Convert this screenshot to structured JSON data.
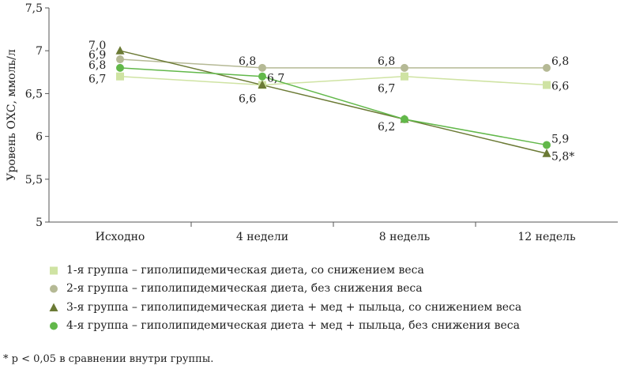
{
  "chart_data": {
    "type": "line",
    "categories": [
      "Исходно",
      "4 недели",
      "8 недель",
      "12 недель"
    ],
    "ylabel": "Уровень ОХС, ммоль/л",
    "ylim": [
      5,
      7.5
    ],
    "yticks": [
      "5",
      "5,5",
      "6",
      "6,5",
      "7",
      "7,5"
    ],
    "grid": false,
    "legend_position": "bottom",
    "series": [
      {
        "name": "1-я группа – гиполипидемическая диета, со снижением веса",
        "marker": "square",
        "color": "#cfe3a3",
        "values": [
          6.7,
          6.6,
          6.7,
          6.6
        ],
        "labels": [
          "6,7",
          "",
          "6,7",
          "6,6"
        ]
      },
      {
        "name": "2-я группа – гиполипидемическая диета, без снижения веса",
        "marker": "circle",
        "color": "#b5b995",
        "values": [
          6.9,
          6.8,
          6.8,
          6.8
        ],
        "labels": [
          "6,9",
          "6,8",
          "6,8",
          "6,8"
        ]
      },
      {
        "name": "3-я группа – гиполипидемическая диета + мед + пыльца, со снижением веса",
        "marker": "triangle",
        "color": "#6b7a35",
        "values": [
          7.0,
          6.6,
          6.2,
          5.8
        ],
        "labels": [
          "7,0",
          "6,6",
          "6,2",
          "5,8*"
        ]
      },
      {
        "name": "4-я группа – гиполипидемическая диета + мед + пыльца, без снижения веса",
        "marker": "circle",
        "color": "#62b84a",
        "values": [
          6.8,
          6.7,
          6.2,
          5.9
        ],
        "labels": [
          "6,8",
          "6,7",
          "",
          "5,9"
        ]
      }
    ]
  },
  "footnote": "* p < 0,05 в сравнении внутри группы."
}
